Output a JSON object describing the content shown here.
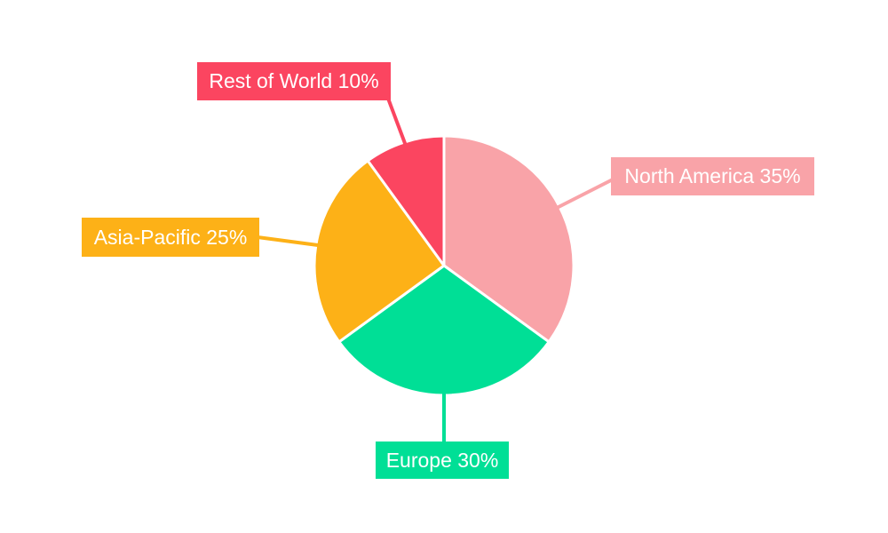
{
  "page": {
    "background_color": "#ffffff",
    "text_color": "#ffffff"
  },
  "chart_data": {
    "type": "pie",
    "title": "",
    "legend": "none",
    "label_style": "callout-boxes",
    "start_angle_deg": 0,
    "direction": "clockwise",
    "total": 100,
    "slices": [
      {
        "label": "North America",
        "value": 35,
        "unit": "%",
        "color": "#F9A3A8",
        "label_text": "North America 35%"
      },
      {
        "label": "Europe",
        "value": 30,
        "unit": "%",
        "color": "#00DF96",
        "label_text": "Europe 30%"
      },
      {
        "label": "Asia-Pacific",
        "value": 25,
        "unit": "%",
        "color": "#FDB117",
        "label_text": "Asia-Pacific 25%"
      },
      {
        "label": "Rest of World",
        "value": 10,
        "unit": "%",
        "color": "#FB4560",
        "label_text": "Rest of World 10%"
      }
    ]
  }
}
